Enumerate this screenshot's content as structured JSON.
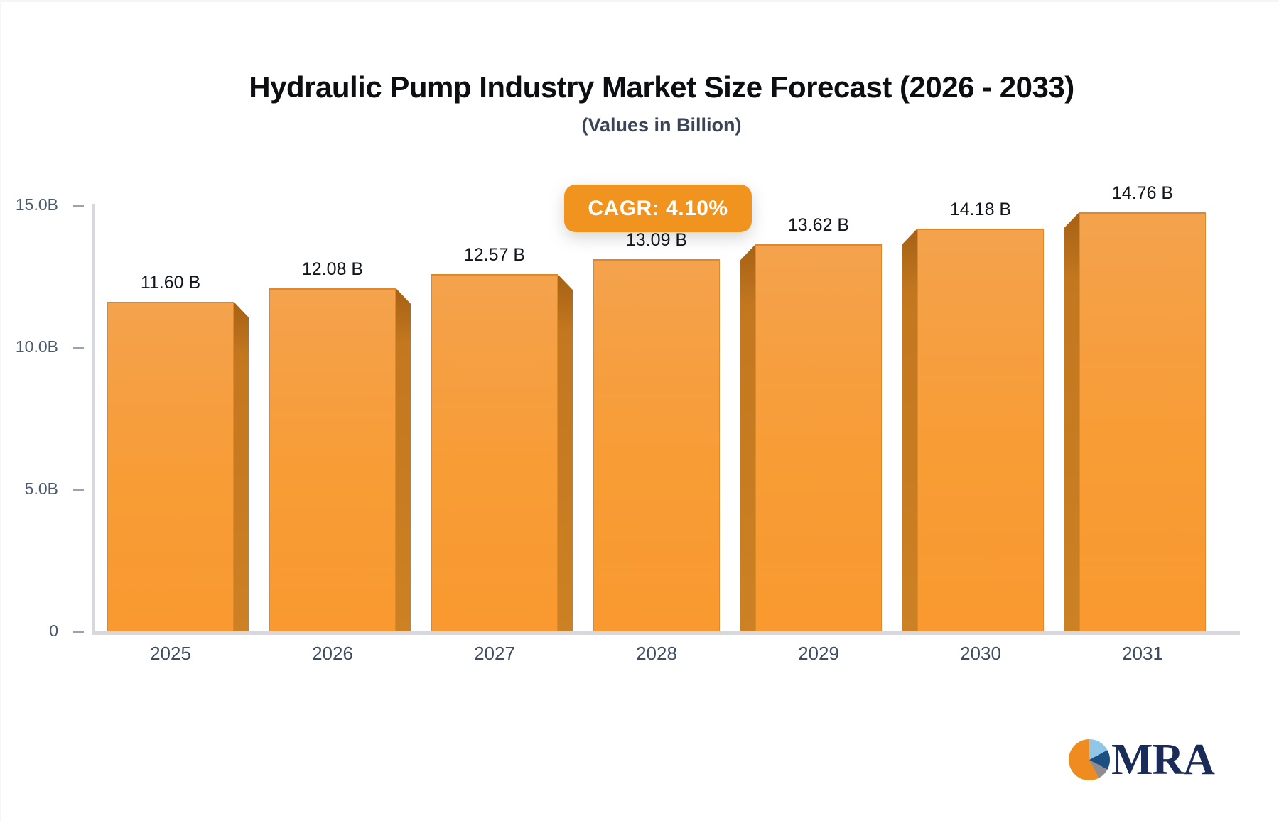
{
  "header": {
    "title": "Hydraulic Pump Industry Market Size Forecast (2026 - 2033)",
    "subtitle": "(Values in Billion)"
  },
  "badge": {
    "label": "CAGR: 4.10%",
    "bg": "#f0941f",
    "text_color": "#ffffff"
  },
  "chart_data": {
    "type": "bar",
    "title": "Hydraulic Pump Industry Market Size Forecast (2026 - 2033)",
    "subtitle": "(Values in Billion)",
    "categories": [
      "2025",
      "2026",
      "2027",
      "2028",
      "2029",
      "2030",
      "2031"
    ],
    "values": [
      11.6,
      12.08,
      12.57,
      13.09,
      13.62,
      14.18,
      14.76
    ],
    "value_labels": [
      "11.60 B",
      "12.08 B",
      "12.57 B",
      "13.09 B",
      "13.62 B",
      "14.18 B",
      "14.76 B"
    ],
    "annotation": "CAGR: 4.10%",
    "xlabel": "",
    "ylabel": "",
    "ylim": [
      0,
      15
    ],
    "yticks": [
      {
        "value": 15,
        "label": "15.0B"
      },
      {
        "value": 10,
        "label": "10.0B"
      },
      {
        "value": 5,
        "label": "5.0B"
      },
      {
        "value": 0,
        "label": "0"
      }
    ],
    "grid": false,
    "legend": false,
    "bar_style": "3d-extruded",
    "colors": {
      "bar_face_top": "#f4a24d",
      "bar_face_bottom": "#f99930",
      "bar_side": "#c3771f",
      "axis_line": "#d6d8de",
      "tick_label": "#4c5a6e",
      "value_label": "#11151c",
      "category_label": "#3e4c61"
    }
  },
  "logo": {
    "text": "MRA",
    "text_color": "#1b2b57",
    "pie_orange": "#ee8c20",
    "pie_blue": "#90c7e9",
    "pie_navy": "#1d4f80",
    "pie_gray": "#8d8d92"
  }
}
